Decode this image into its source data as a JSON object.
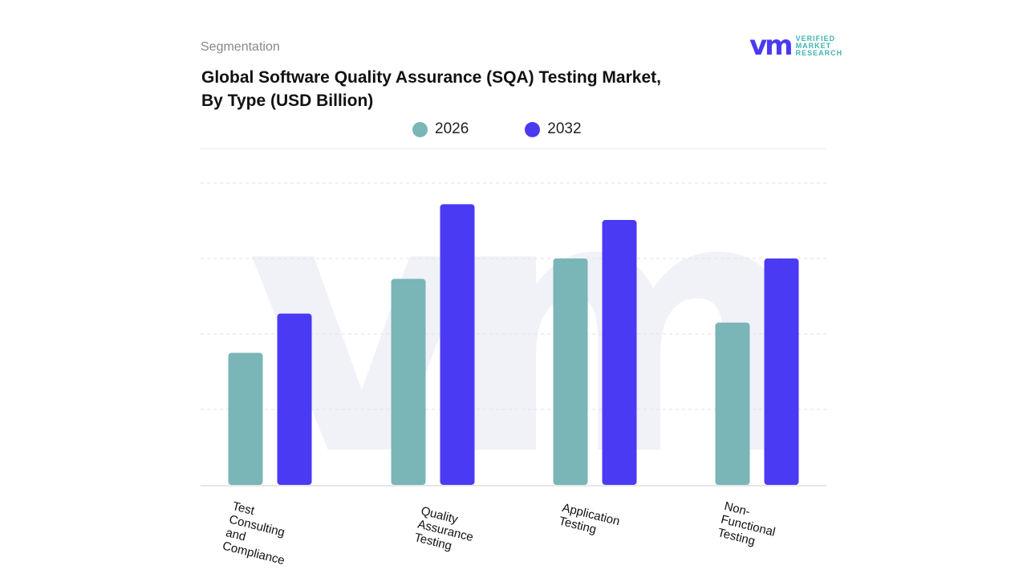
{
  "header": {
    "segment_label": "Segmentation",
    "title_line1": "Global Software Quality Assurance (SQA) Testing Market,",
    "title_line2": "By Type (USD Billion)"
  },
  "logo": {
    "mark": "vmr",
    "line1": "VERIFIED",
    "line2": "MARKET",
    "line3": "RESEARCH"
  },
  "chart_data": {
    "type": "bar",
    "title": "Global Software Quality Assurance (SQA) Testing Market, By Type (USD Billion)",
    "categories": [
      "Test Consulting and Compliance",
      "Quality Assurance Testing",
      "Application Testing",
      "Non-Functional Testing"
    ],
    "series": [
      {
        "name": "2026",
        "color": "#7ab5b7",
        "values": [
          1.75,
          2.73,
          3.0,
          2.15
        ]
      },
      {
        "name": "2032",
        "color": "#4b3af3",
        "values": [
          2.27,
          3.72,
          3.51,
          3.0
        ]
      }
    ],
    "ylim": [
      0,
      4
    ],
    "grid": true,
    "legend": "top-center",
    "note_units": "relative; no y-axis ticks shown"
  }
}
